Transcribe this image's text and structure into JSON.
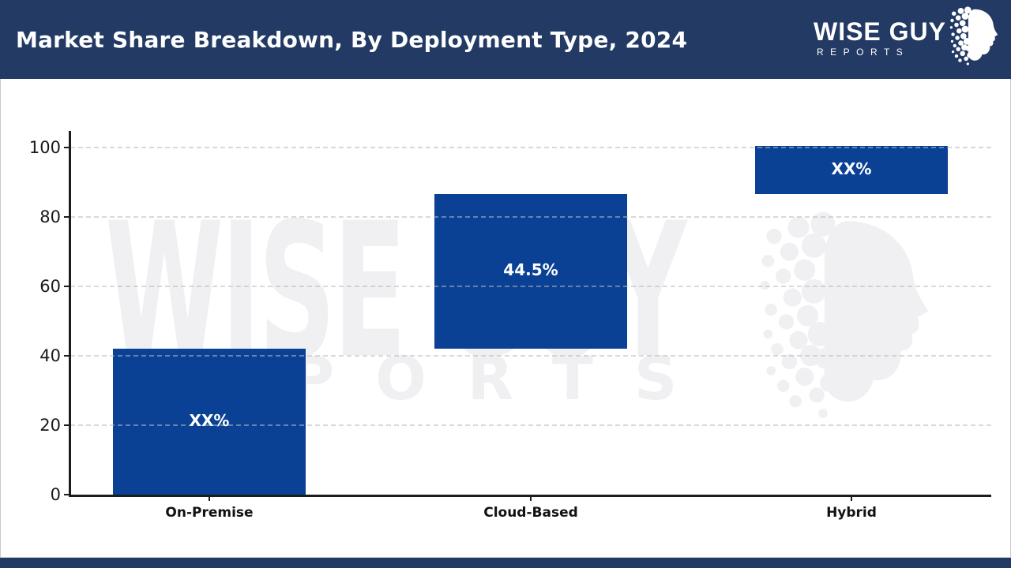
{
  "header": {
    "title": "Market Share Breakdown, By Deployment Type, 2024",
    "logo": {
      "wordmark": "WISE GUY",
      "subtext": "REPORTS"
    }
  },
  "watermark": {
    "wordmark": "WISE GUY",
    "subtext": "REPORTS"
  },
  "colors": {
    "header_navy": "#223a64",
    "bar_blue": "#0a4195",
    "bar_label": "#ffffff",
    "axis": "#1c1c1c",
    "gridline": "#d6d6d6",
    "watermark_gray": "#f0f0f3"
  },
  "chart_data": {
    "type": "bar",
    "subtype": "floating-segment-waterfall",
    "title": "Market Share Breakdown, By Deployment Type, 2024",
    "categories": [
      "On-Premise",
      "Cloud-Based",
      "Hybrid"
    ],
    "bars": [
      {
        "category": "On-Premise",
        "start": 0,
        "end": 42,
        "value_label": "XX%"
      },
      {
        "category": "Cloud-Based",
        "start": 42,
        "end": 86.5,
        "value_label": "44.5%"
      },
      {
        "category": "Hybrid",
        "start": 86.5,
        "end": 100.5,
        "value_label": "XX%"
      }
    ],
    "xlabel": "",
    "ylabel": "",
    "unit": "percent market share",
    "y_axis": {
      "ticks": [
        0,
        20,
        40,
        60,
        80,
        100
      ],
      "min": 0,
      "max": 104.5
    },
    "grid": "horizontal dashed gridlines at each y tick, drawn over bars",
    "legend": "none"
  }
}
